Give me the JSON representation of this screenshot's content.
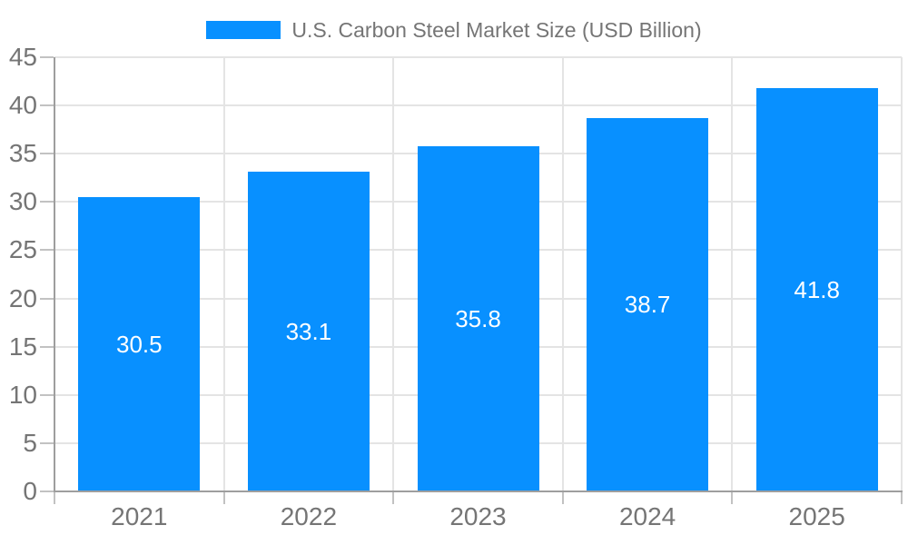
{
  "legend": {
    "label": "U.S. Carbon Steel Market Size (USD Billion)"
  },
  "chart_data": {
    "type": "bar",
    "title": "U.S. Carbon Steel Market Size (USD Billion)",
    "categories": [
      "2021",
      "2022",
      "2023",
      "2024",
      "2025"
    ],
    "values": [
      30.5,
      33.1,
      35.8,
      38.7,
      41.8
    ],
    "value_labels": [
      "30.5",
      "33.1",
      "35.8",
      "38.7",
      "41.8"
    ],
    "xlabel": "",
    "ylabel": "",
    "ylim": [
      0,
      45
    ],
    "ytick_step": 5,
    "yticks": [
      0,
      5,
      10,
      15,
      20,
      25,
      30,
      35,
      40,
      45
    ],
    "grid": true,
    "legend_position": "top",
    "colors": {
      "bar": "#0890ff",
      "bar_label_text": "#ffffff",
      "axis_line": "#9e9e9e",
      "gridline": "#e4e4e4",
      "tick_mark": "#c2c2c2",
      "axis_text": "#757575",
      "legend_text": "#757575",
      "background": "#ffffff"
    }
  }
}
